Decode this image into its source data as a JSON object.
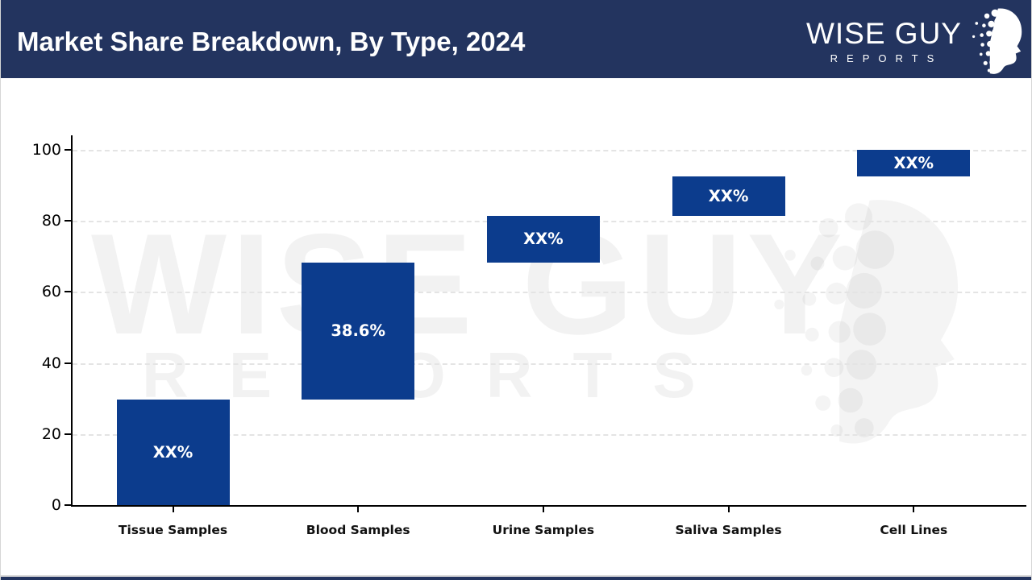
{
  "header": {
    "title": "Market Share Breakdown, By Type, 2024",
    "logo": {
      "line1": "WISE GUY",
      "line2": "REPORTS"
    }
  },
  "watermark": {
    "line1": "WISE GUY",
    "line2": "REPORTS"
  },
  "colors": {
    "header_bg": "#23345f",
    "bar": "#0c3c8d",
    "grid": "#e4e4e4",
    "axis": "#000000",
    "footer_bg": "#23345f"
  },
  "chart_data": {
    "type": "bar",
    "subtype": "waterfall",
    "title": "Market Share Breakdown, By Type, 2024",
    "categories": [
      "Tissue Samples",
      "Blood Samples",
      "Urine Samples",
      "Saliva Samples",
      "Cell Lines"
    ],
    "segments": [
      {
        "category": "Tissue Samples",
        "start": 0,
        "end": 29.7,
        "value": 29.7,
        "value_label": "XX%"
      },
      {
        "category": "Blood Samples",
        "start": 29.7,
        "end": 68.3,
        "value": 38.6,
        "value_label": "38.6%"
      },
      {
        "category": "Urine Samples",
        "start": 68.3,
        "end": 81.5,
        "value": 13.2,
        "value_label": "XX%"
      },
      {
        "category": "Saliva Samples",
        "start": 81.5,
        "end": 92.6,
        "value": 11.1,
        "value_label": "XX%"
      },
      {
        "category": "Cell Lines",
        "start": 92.6,
        "end": 100,
        "value": 7.4,
        "value_label": "XX%"
      }
    ],
    "labels": [
      "XX%",
      "38.6%",
      "XX%",
      "XX%",
      "XX%"
    ],
    "yticks": [
      0,
      20,
      40,
      60,
      80,
      100
    ],
    "ylim": [
      0,
      106
    ],
    "xlabel": "",
    "ylabel": "",
    "grid": "horizontal-dashed",
    "legend": "none",
    "bar_color": "#0c3c8d"
  }
}
